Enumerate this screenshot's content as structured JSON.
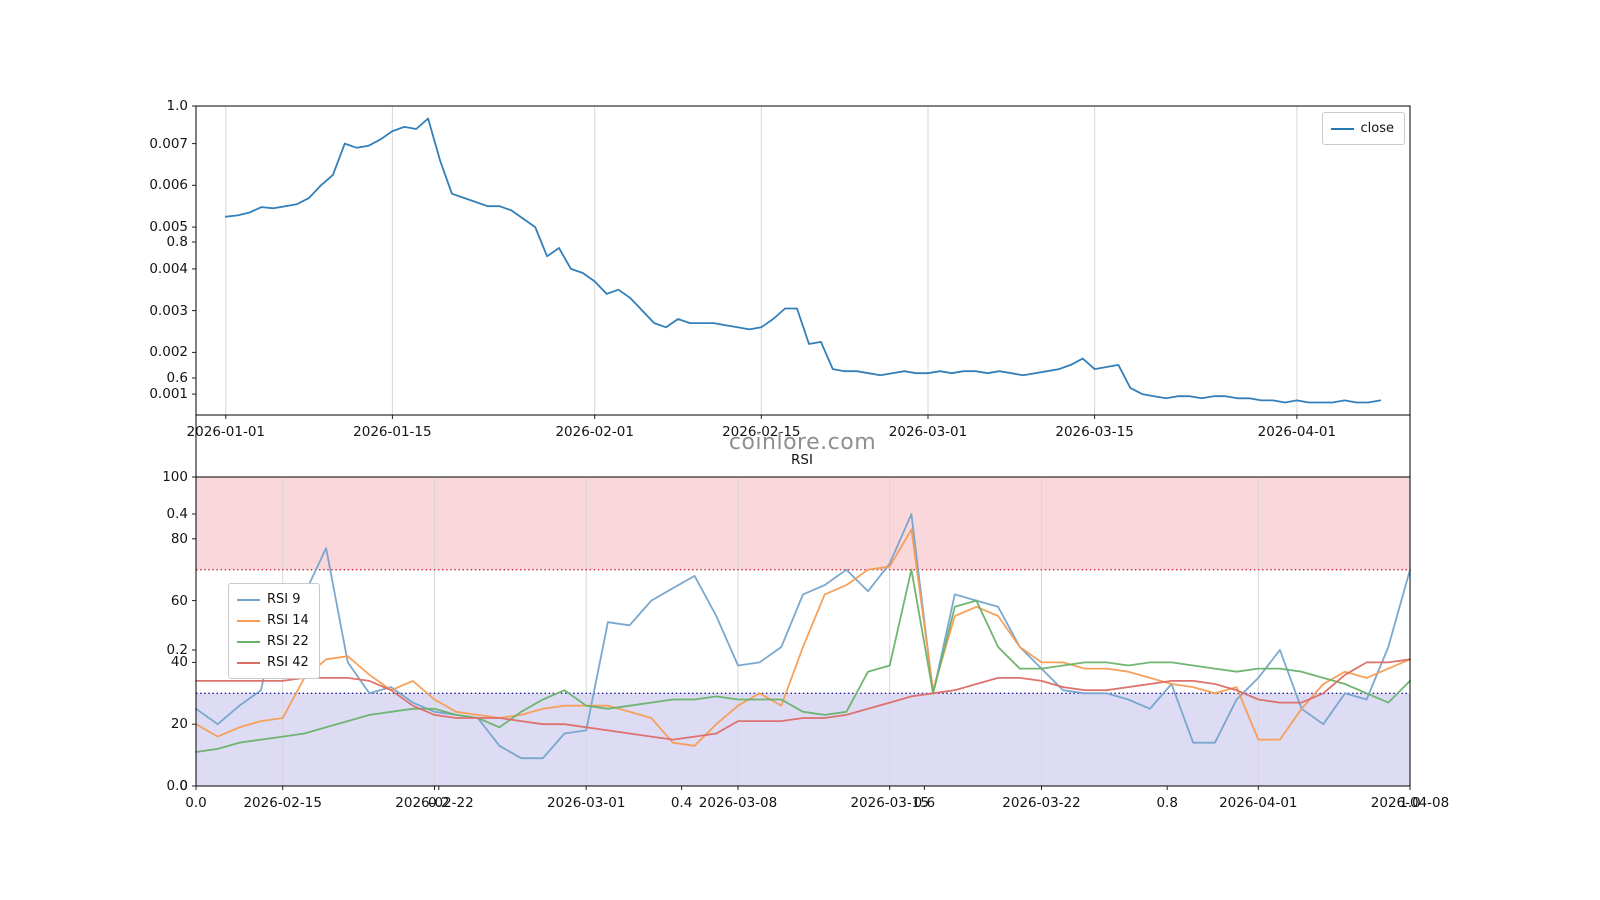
{
  "watermark": "coinlore.com",
  "colors": {
    "grid": "#d7d7d7",
    "watermark": "#8f8f8f",
    "axis_text": "#141414",
    "frame": "#000000"
  },
  "chart_data": [
    {
      "type": "line",
      "title": "",
      "x_start": "2026-01-01",
      "x_ticks": [
        "2026-01-01",
        "2026-01-15",
        "2026-02-01",
        "2026-02-15",
        "2026-03-01",
        "2026-03-15",
        "2026-04-01"
      ],
      "y_ticks": [
        "0.001",
        "0.002",
        "0.003",
        "0.004",
        "0.005",
        "0.006",
        "0.007"
      ],
      "ylim": [
        0.0005,
        0.0079
      ],
      "legend_position": "upper right",
      "series": [
        {
          "name": "close",
          "color": "#2878b5",
          "values": [
            0.00525,
            0.00528,
            0.00535,
            0.00548,
            0.00545,
            0.0055,
            0.00555,
            0.0057,
            0.006,
            0.00625,
            0.007,
            0.0069,
            0.00695,
            0.0071,
            0.0073,
            0.0074,
            0.00735,
            0.0076,
            0.0066,
            0.0058,
            0.0057,
            0.0056,
            0.0055,
            0.0055,
            0.0054,
            0.0052,
            0.005,
            0.0043,
            0.0045,
            0.004,
            0.0039,
            0.0037,
            0.0034,
            0.0035,
            0.0033,
            0.003,
            0.0027,
            0.0026,
            0.0028,
            0.0027,
            0.0027,
            0.0027,
            0.00265,
            0.0026,
            0.00255,
            0.0026,
            0.0028,
            0.00305,
            0.00305,
            0.0022,
            0.00225,
            0.0016,
            0.00155,
            0.00155,
            0.0015,
            0.00145,
            0.0015,
            0.00155,
            0.0015,
            0.0015,
            0.00155,
            0.0015,
            0.00155,
            0.00155,
            0.0015,
            0.00155,
            0.0015,
            0.00145,
            0.0015,
            0.00155,
            0.0016,
            0.0017,
            0.00185,
            0.0016,
            0.00165,
            0.0017,
            0.00115,
            0.001,
            0.00095,
            0.0009,
            0.00095,
            0.00095,
            0.0009,
            0.00095,
            0.00095,
            0.0009,
            0.0009,
            0.00085,
            0.00085,
            0.0008,
            0.00085,
            0.0008,
            0.0008,
            0.0008,
            0.00085,
            0.0008,
            0.0008,
            0.00085
          ]
        }
      ]
    },
    {
      "type": "line",
      "title": "RSI",
      "x_start": "2026-02-11",
      "x_ticks": [
        "2026-02-15",
        "2026-02-22",
        "2026-03-01",
        "2026-03-08",
        "2026-03-15",
        "2026-03-22",
        "2026-04-01",
        "2026-04-08"
      ],
      "y_ticks": [
        "0",
        "20",
        "40",
        "60",
        "80",
        "100"
      ],
      "ylim": [
        0,
        100
      ],
      "bands": [
        {
          "name": "overbought-band",
          "from": 70,
          "to": 100,
          "fill": "#f9d7db"
        },
        {
          "name": "oversold-band",
          "from": 0,
          "to": 30,
          "fill": "#dddcf4"
        }
      ],
      "hlines": [
        {
          "name": "overbought-line",
          "value": 70,
          "color": "#cc2b36"
        },
        {
          "name": "oversold-line",
          "value": 30,
          "color": "#22229c"
        }
      ],
      "legend_position": "center left",
      "series": [
        {
          "name": "RSI 9",
          "color": "#74a3cb",
          "values": [
            25,
            20,
            26,
            31,
            63,
            62,
            77,
            40,
            30,
            32,
            27,
            24,
            23,
            22,
            13,
            9,
            9,
            17,
            18,
            53,
            52,
            60,
            64,
            68,
            55,
            39,
            40,
            45,
            62,
            65,
            70,
            63,
            72,
            88,
            30,
            62,
            60,
            58,
            45,
            38,
            31,
            30,
            30,
            28,
            25,
            33,
            14,
            14,
            28,
            35,
            44,
            25,
            20,
            30,
            28,
            45,
            70
          ]
        },
        {
          "name": "RSI 14",
          "color": "#f79c52",
          "values": [
            20,
            16,
            19,
            21,
            22,
            35,
            41,
            42,
            36,
            31,
            34,
            28,
            24,
            23,
            22,
            23,
            25,
            26,
            26,
            26,
            24,
            22,
            14,
            13,
            20,
            26,
            30,
            26,
            45,
            62,
            65,
            70,
            71,
            83,
            31,
            55,
            58,
            55,
            45,
            40,
            40,
            38,
            38,
            37,
            35,
            33,
            32,
            30,
            32,
            15,
            15,
            25,
            33,
            37,
            35,
            38,
            41
          ]
        },
        {
          "name": "RSI 22",
          "color": "#68b26a",
          "values": [
            11,
            12,
            14,
            15,
            16,
            17,
            19,
            21,
            23,
            24,
            25,
            25,
            23,
            22,
            19,
            24,
            28,
            31,
            26,
            25,
            26,
            27,
            28,
            28,
            29,
            28,
            28,
            28,
            24,
            23,
            24,
            37,
            39,
            70,
            30,
            58,
            60,
            45,
            38,
            38,
            39,
            40,
            40,
            39,
            40,
            40,
            39,
            38,
            37,
            38,
            38,
            37,
            35,
            33,
            30,
            27,
            34
          ]
        },
        {
          "name": "RSI 42",
          "color": "#dc6b66",
          "values": [
            34,
            34,
            34,
            34,
            34,
            35,
            35,
            35,
            34,
            31,
            26,
            23,
            22,
            22,
            22,
            21,
            20,
            20,
            19,
            18,
            17,
            16,
            15,
            16,
            17,
            21,
            21,
            21,
            22,
            22,
            23,
            25,
            27,
            29,
            30,
            31,
            33,
            35,
            35,
            34,
            32,
            31,
            31,
            32,
            33,
            34,
            34,
            33,
            31,
            28,
            27,
            27,
            30,
            36,
            40,
            40,
            41
          ]
        }
      ]
    }
  ],
  "background_axis": {
    "y_labels": [
      "1.0",
      "0.8",
      "0.6",
      "0.4",
      "0.2",
      "0.0"
    ],
    "x_labels": [
      "0.0",
      "0.2",
      "0.4",
      "0.6",
      "0.8",
      "1.0"
    ]
  }
}
